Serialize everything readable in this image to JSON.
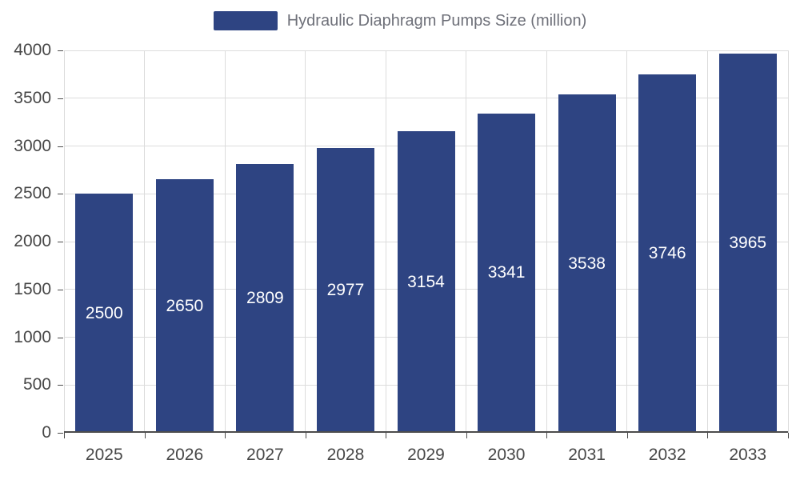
{
  "legend": {
    "label": "Hydraulic Diaphragm Pumps Size (million)"
  },
  "colors": {
    "bar": "#2e4482",
    "grid": "#dcdcdc",
    "axis": "#4d4d4d",
    "tick_text": "#474747",
    "legend_text": "#6e7079",
    "value_label": "#ffffff"
  },
  "chart_data": {
    "type": "bar",
    "title": "Hydraulic Diaphragm Pumps Size (million)",
    "categories": [
      "2025",
      "2026",
      "2027",
      "2028",
      "2029",
      "2030",
      "2031",
      "2032",
      "2033"
    ],
    "values": [
      2500,
      2650,
      2809,
      2977,
      3154,
      3341,
      3538,
      3746,
      3965
    ],
    "xlabel": "",
    "ylabel": "",
    "ylim": [
      0,
      4000
    ],
    "ytick_step": 500,
    "grid": true,
    "legend_position": "top",
    "value_labels": "inside-center"
  }
}
